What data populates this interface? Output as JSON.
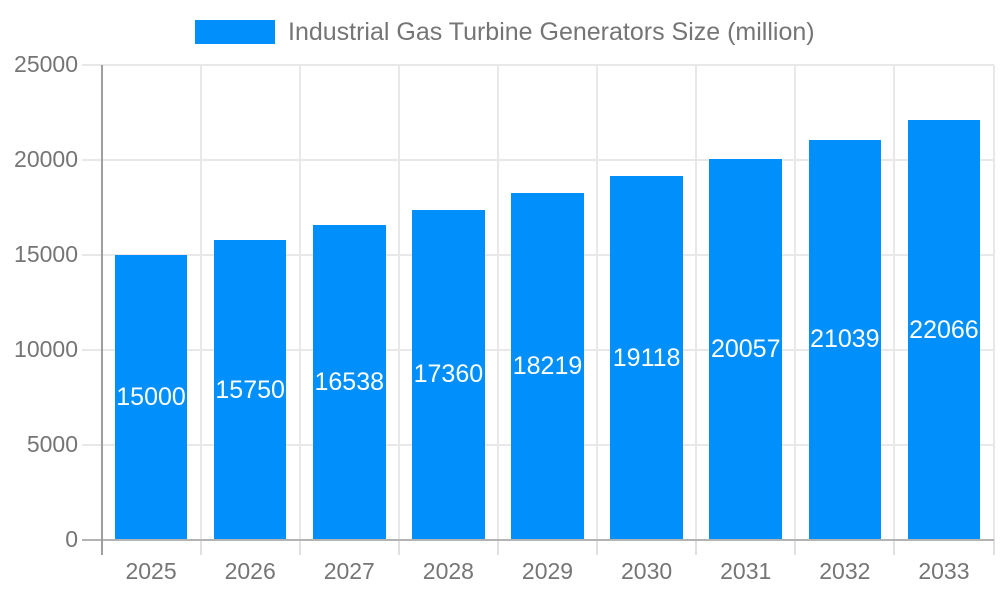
{
  "legend": {
    "label": "Industrial Gas Turbine Generators Size (million)"
  },
  "colors": {
    "bar": "#008ffb",
    "bar_label": "#ffffff",
    "axis_text": "#757575",
    "legend_text": "#757575",
    "gridline": "#e8e8e8",
    "tick": "#e0e0e0",
    "y_axis_line": "#9e9e9e",
    "x_axis_line": "#b3b3b3",
    "background": "#ffffff"
  },
  "chart_data": {
    "type": "bar",
    "title": "Industrial Gas Turbine Generators Size (million)",
    "categories": [
      "2025",
      "2026",
      "2027",
      "2028",
      "2029",
      "2030",
      "2031",
      "2032",
      "2033"
    ],
    "series": [
      {
        "name": "Industrial Gas Turbine Generators Size (million)",
        "values": [
          15000,
          15750,
          16538,
          17360,
          18219,
          19118,
          20057,
          21039,
          22066
        ]
      }
    ],
    "bar_labels": [
      "15000",
      "15750",
      "16538",
      "17360",
      "18219",
      "19118",
      "20057",
      "21039",
      "22066"
    ],
    "xlabel": "",
    "ylabel": "",
    "ylim": [
      0,
      25000
    ],
    "yticks": [
      0,
      5000,
      10000,
      15000,
      20000,
      25000
    ],
    "grid": true,
    "legend_position": "top",
    "data_labels": "inside-center"
  }
}
